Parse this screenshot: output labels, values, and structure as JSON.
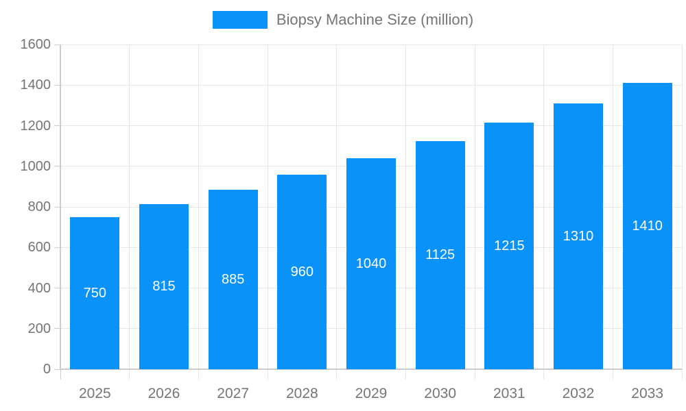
{
  "chart_data": {
    "type": "bar",
    "title": "Biopsy Machine Size (million)",
    "legend": {
      "position": "top",
      "label": "Biopsy Machine Size (million)"
    },
    "categories": [
      "2025",
      "2026",
      "2027",
      "2028",
      "2029",
      "2030",
      "2031",
      "2032",
      "2033"
    ],
    "series": [
      {
        "name": "Biopsy Machine Size (million)",
        "values": [
          750,
          815,
          885,
          960,
          1040,
          1125,
          1215,
          1310,
          1410
        ]
      }
    ],
    "value_labels": [
      "750",
      "815",
      "885",
      "960",
      "1040",
      "1125",
      "1215",
      "1310",
      "1410"
    ],
    "xlabel": "",
    "ylabel": "",
    "ylim": [
      0,
      1600
    ],
    "yticks": [
      0,
      200,
      400,
      600,
      800,
      1000,
      1200,
      1400,
      1600
    ],
    "grid": true,
    "colors": {
      "bar": "#0892fa",
      "value_label": "#ffffff",
      "axis_text": "#757575",
      "grid_line": "#e6e6e6",
      "axis_line": "#cccccc",
      "background": "#ffffff"
    }
  }
}
